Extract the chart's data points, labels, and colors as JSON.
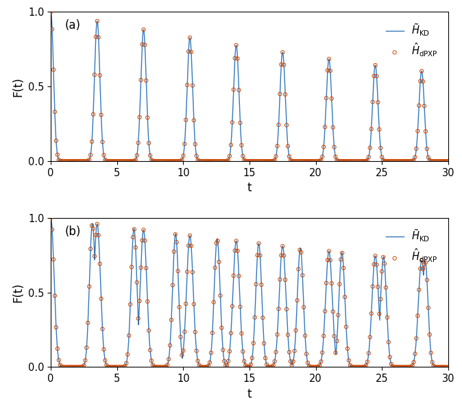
{
  "xlim": [
    0,
    30
  ],
  "ylim": [
    0,
    1
  ],
  "xlabel": "t",
  "ylabel": "F(t)",
  "panel_labels": [
    "(a)",
    "(b)"
  ],
  "line_color": "#3377bb",
  "scatter_color": "#cc4400",
  "scatter_size": 14,
  "line_width": 1.0,
  "xticks": [
    0,
    5,
    10,
    15,
    20,
    25,
    30
  ],
  "yticks": [
    0,
    0.5,
    1
  ],
  "legend_line_label": "$\\tilde{H}_{\\mathrm{KD}}$",
  "legend_scatter_label": "$\\hat{H}_{\\mathrm{dPXP}}$",
  "figsize": [
    6.74,
    5.82
  ],
  "dpi": 100
}
